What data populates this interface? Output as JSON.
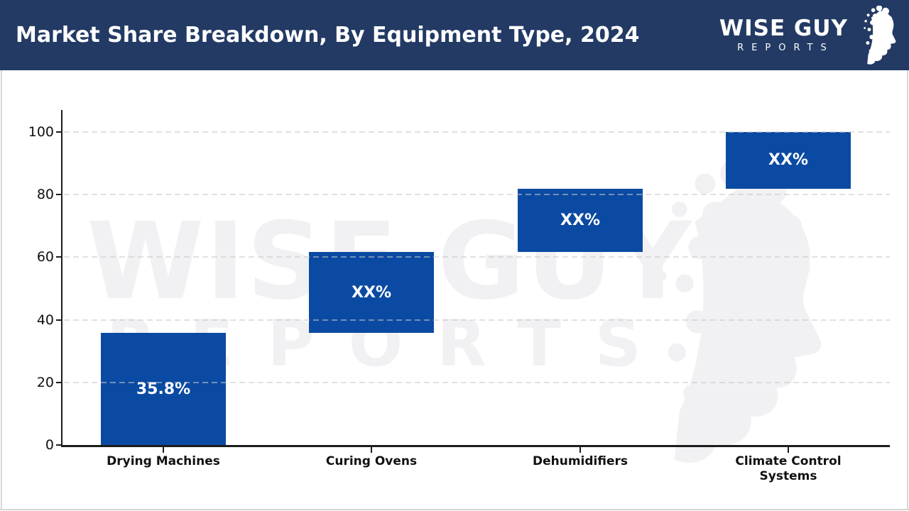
{
  "header": {
    "title": "Market Share Breakdown, By Equipment Type, 2024",
    "bg_color": "#223a64",
    "logo": {
      "line1": "WISE GUY",
      "line2": "REPORTS"
    }
  },
  "watermark": {
    "line1": "WISE GUY",
    "line2": "REPORTS"
  },
  "chart_data": {
    "type": "bar",
    "subtype": "waterfall",
    "title": "Market Share Breakdown, By Equipment Type, 2024",
    "categories": [
      "Drying Machines",
      "Curing Ovens",
      "Dehumidifiers",
      "Climate Control Systems"
    ],
    "segments": [
      {
        "category": "Drying Machines",
        "start": 0,
        "end": 35.8,
        "label": "35.8%"
      },
      {
        "category": "Curing Ovens",
        "start": 35.8,
        "end": 61.6,
        "label": "XX%"
      },
      {
        "category": "Dehumidifiers",
        "start": 61.6,
        "end": 81.9,
        "label": "XX%"
      },
      {
        "category": "Climate Control Systems",
        "start": 81.9,
        "end": 100,
        "label": "XX%"
      }
    ],
    "ylabel": "",
    "xlabel": "",
    "ylim": [
      0,
      100
    ],
    "yticks": [
      0,
      20,
      40,
      60,
      80,
      100
    ],
    "grid": "horizontal dashed",
    "legend": "none",
    "bar_color": "#0b4aa2",
    "value_label_color": "#ffffff"
  }
}
